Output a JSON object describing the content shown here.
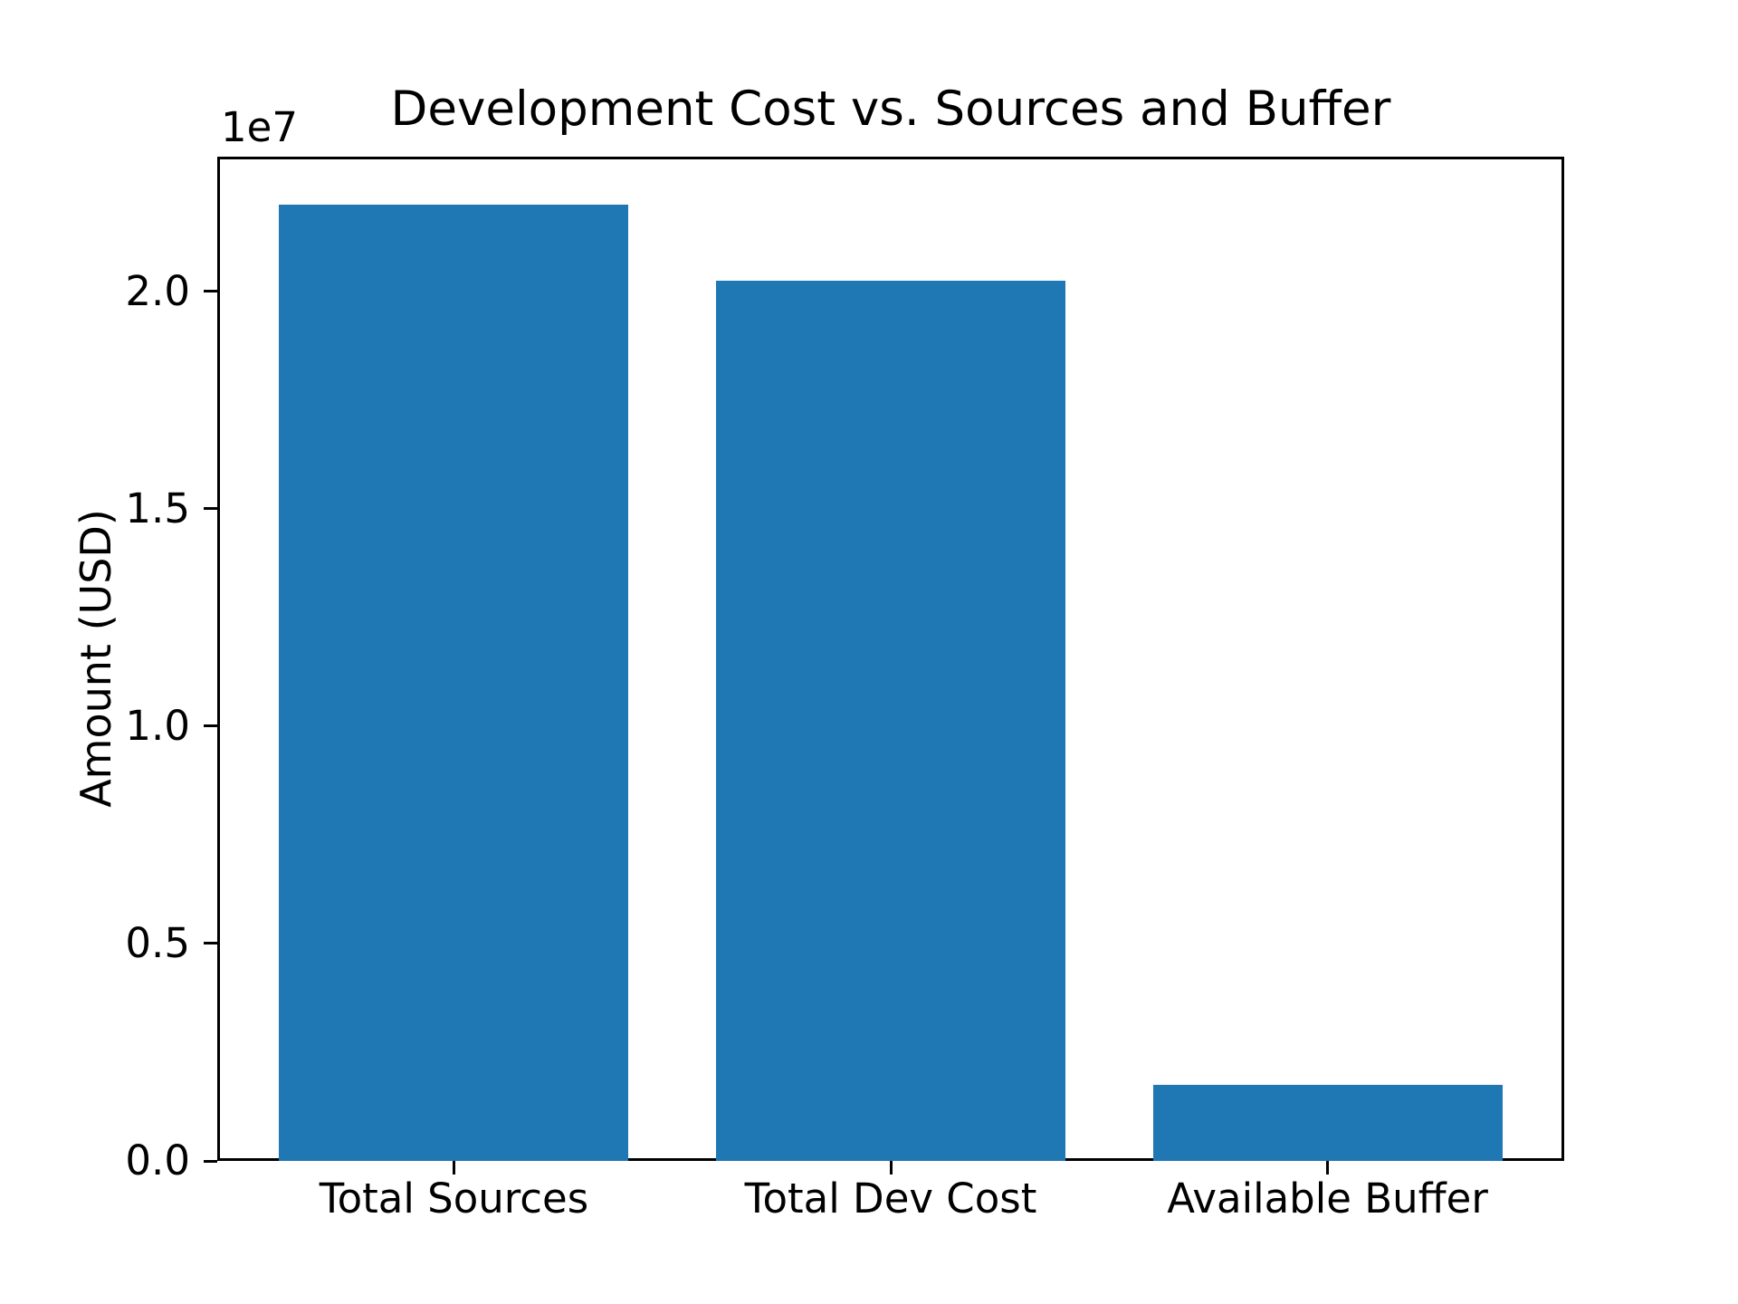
{
  "chart_data": {
    "type": "bar",
    "title": "Development Cost vs. Sources and Buffer",
    "xlabel": "",
    "ylabel": "Amount (USD)",
    "y_offset_text": "1e7",
    "categories": [
      "Total Sources",
      "Total Dev Cost",
      "Available Buffer"
    ],
    "values": [
      22000000,
      20250000,
      1750000
    ],
    "ylim": [
      0,
      23100000
    ],
    "yticks": [
      0,
      5000000,
      10000000,
      15000000,
      20000000
    ],
    "ytick_labels": [
      "0.0",
      "0.5",
      "1.0",
      "1.5",
      "2.0"
    ],
    "bar_color": "#1f77b4",
    "axis_color": "#000000",
    "background_color": "#ffffff",
    "grid": false,
    "legend": false
  }
}
